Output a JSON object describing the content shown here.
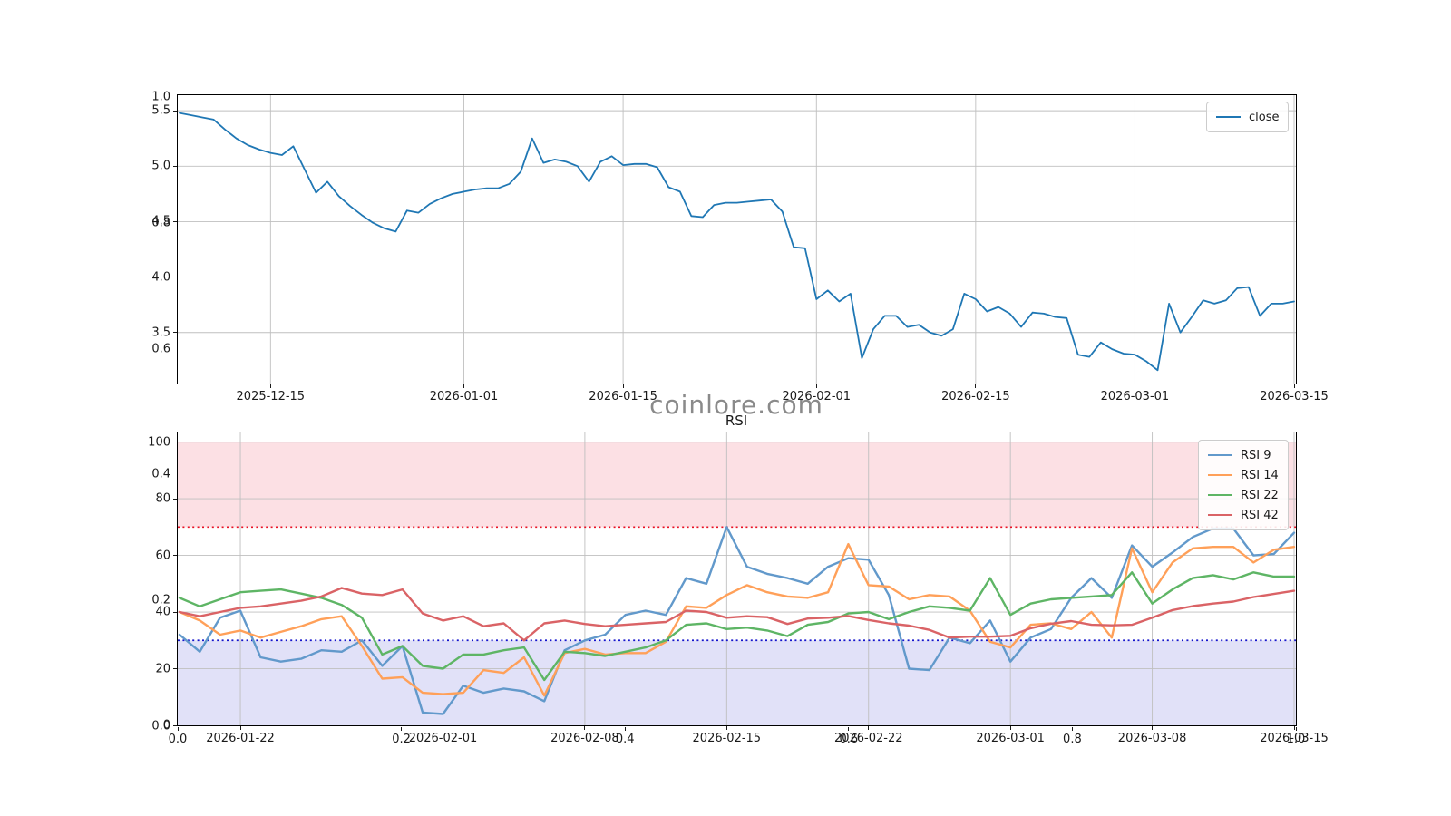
{
  "watermark": "coinlore.com",
  "figure_axis": {
    "x_ticks": [
      "0.0",
      "0.2",
      "0.4",
      "0.6",
      "0.8",
      "1.0"
    ],
    "y_ticks": [
      "0.0",
      "0.2",
      "0.4",
      "0.6",
      "0.8",
      "1.0"
    ]
  },
  "chart_data": [
    {
      "id": "price",
      "type": "line",
      "title": "",
      "ylabel": "",
      "ylim": [
        3.04,
        5.64
      ],
      "y_ticks": [
        "3.5",
        "4.0",
        "4.5",
        "5.0",
        "5.5"
      ],
      "x_tick_labels": [
        "2025-12-15",
        "2026-01-01",
        "2026-01-15",
        "2026-02-01",
        "2026-02-15",
        "2026-03-01",
        "2026-03-15"
      ],
      "x_tick_positions": [
        8,
        25,
        39,
        56,
        70,
        84,
        98
      ],
      "x_total": 98,
      "grid": true,
      "legend_position": "upper right",
      "series": [
        {
          "name": "close",
          "color": "#1f77b4",
          "width": 1.8,
          "values": [
            5.48,
            5.46,
            5.44,
            5.42,
            5.33,
            5.25,
            5.19,
            5.15,
            5.12,
            5.1,
            5.18,
            4.97,
            4.76,
            4.86,
            4.73,
            4.64,
            4.56,
            4.49,
            4.44,
            4.41,
            4.6,
            4.58,
            4.66,
            4.71,
            4.75,
            4.77,
            4.79,
            4.8,
            4.8,
            4.84,
            4.95,
            5.25,
            5.03,
            5.06,
            5.04,
            5.0,
            4.86,
            5.04,
            5.09,
            5.01,
            5.02,
            5.02,
            4.99,
            4.81,
            4.77,
            4.55,
            4.54,
            4.65,
            4.67,
            4.67,
            4.68,
            4.69,
            4.7,
            4.59,
            4.27,
            4.26,
            3.8,
            3.88,
            3.78,
            3.85,
            3.27,
            3.53,
            3.65,
            3.65,
            3.55,
            3.57,
            3.5,
            3.47,
            3.53,
            3.85,
            3.8,
            3.69,
            3.73,
            3.67,
            3.55,
            3.68,
            3.67,
            3.64,
            3.63,
            3.3,
            3.28,
            3.41,
            3.35,
            3.31,
            3.3,
            3.24,
            3.16,
            3.76,
            3.5,
            3.64,
            3.79,
            3.76,
            3.79,
            3.9,
            3.91,
            3.65,
            3.76,
            3.76,
            3.78
          ]
        }
      ]
    },
    {
      "id": "rsi",
      "type": "line",
      "title": "RSI",
      "ylabel": "",
      "ylim": [
        0,
        103.4
      ],
      "y_ticks": [
        "0",
        "20",
        "40",
        "60",
        "80",
        "100"
      ],
      "x_tick_labels": [
        "2026-01-22",
        "2026-02-01",
        "2026-02-08",
        "2026-02-15",
        "2026-02-22",
        "2026-03-01",
        "2026-03-08",
        "2026-03-15"
      ],
      "x_tick_positions": [
        3,
        13,
        20,
        27,
        34,
        41,
        48,
        55
      ],
      "x_total": 55,
      "grid": true,
      "legend_position": "upper right",
      "bands": [
        {
          "from": 70,
          "to": 100,
          "color": "#fce0e4",
          "meaning": "overbought-zone"
        },
        {
          "from": 0,
          "to": 30,
          "color": "#e1e1f8",
          "meaning": "oversold-zone"
        }
      ],
      "hlines": [
        {
          "y": 70,
          "color": "#e81123",
          "style": "dotted"
        },
        {
          "y": 30,
          "color": "#1414cc",
          "style": "dotted"
        }
      ],
      "series": [
        {
          "name": "RSI 9",
          "color": "#6299cb",
          "width": 2.4,
          "values": [
            32,
            26,
            38,
            40.5,
            24,
            22.5,
            23.5,
            26.5,
            26,
            30,
            21,
            28,
            4.5,
            4,
            14,
            11.5,
            13,
            12,
            8.5,
            26.5,
            30,
            32,
            39,
            40.5,
            39,
            52,
            50,
            70,
            56,
            53.5,
            52,
            50,
            56,
            59,
            58.5,
            46,
            20,
            19.5,
            31,
            29,
            37,
            22.5,
            31,
            34,
            45,
            52,
            45,
            63.5,
            56,
            61,
            66.5,
            69.5,
            69.5,
            60,
            60.5,
            68
          ]
        },
        {
          "name": "RSI 14",
          "color": "#ffa059",
          "width": 2.4,
          "values": [
            40,
            37,
            32,
            33.5,
            31,
            33,
            35,
            37.5,
            38.5,
            28,
            16.5,
            17,
            11.5,
            11,
            11.5,
            19.5,
            18.5,
            24,
            10.5,
            25.5,
            27,
            25,
            25.5,
            25.5,
            29.5,
            42,
            41.5,
            46,
            49.5,
            47,
            45.5,
            45,
            47,
            64,
            49.5,
            49,
            44.5,
            46,
            45.5,
            40.5,
            29.5,
            27.5,
            35.5,
            36,
            34,
            40,
            31,
            62.5,
            47,
            57.5,
            62.5,
            63,
            63,
            57.5,
            62,
            63
          ]
        },
        {
          "name": "RSI 22",
          "color": "#5eb565",
          "width": 2.4,
          "values": [
            45,
            42,
            44.5,
            47,
            47.5,
            48,
            46.5,
            45,
            42.5,
            38,
            25,
            28,
            21,
            20,
            25,
            25,
            26.5,
            27.5,
            16,
            26,
            25.5,
            24.5,
            26,
            27.5,
            30,
            35.5,
            36,
            34,
            34.5,
            33.5,
            31.5,
            35.5,
            36.5,
            39.5,
            40,
            37.5,
            40,
            42,
            41.5,
            40.5,
            52,
            39,
            43,
            44.5,
            45,
            45.5,
            46,
            54,
            43,
            48,
            52,
            53,
            51.5,
            54,
            52.5,
            52.5
          ]
        },
        {
          "name": "RSI 42",
          "color": "#da6366",
          "width": 2.4,
          "values": [
            40,
            38.5,
            40,
            41.5,
            42,
            43,
            44,
            45.5,
            48.5,
            46.5,
            46,
            48,
            39.5,
            37,
            38.5,
            35,
            36,
            30,
            36,
            37,
            35.8,
            35,
            35.5,
            36,
            36.5,
            40.5,
            40,
            38,
            38.5,
            38.2,
            35.8,
            37.7,
            38,
            38.6,
            37.2,
            36,
            35.2,
            33.7,
            31,
            31.3,
            31.3,
            31.6,
            34.3,
            35.9,
            36.8,
            35.5,
            35.3,
            35.5,
            38,
            40.7,
            42.1,
            43,
            43.7,
            45.3,
            46.4,
            47.5
          ]
        }
      ]
    }
  ]
}
